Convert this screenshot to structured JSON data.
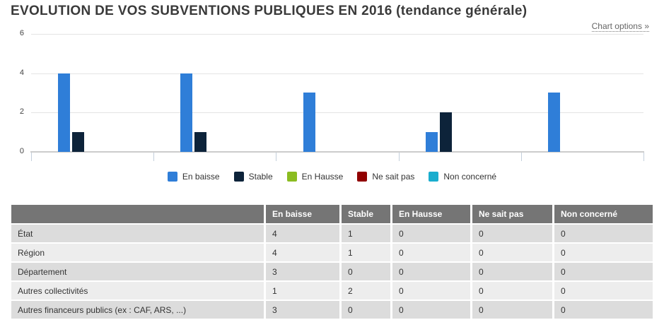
{
  "header": {
    "title": "EVOLUTION DE VOS SUBVENTIONS PUBLIQUES EN 2016 (tendance générale)",
    "chart_options_label": "Chart options »"
  },
  "chart_data": {
    "type": "bar",
    "title": "EVOLUTION DE VOS SUBVENTIONS PUBLIQUES EN 2016 (tendance générale)",
    "categories": [
      "État",
      "Région",
      "Département",
      "Autres collectivités",
      "Autres financeurs publics (ex : CAF, ARS, ...)"
    ],
    "series": [
      {
        "name": "En baisse",
        "color": "#2f7ed8",
        "values": [
          4,
          4,
          3,
          1,
          3
        ]
      },
      {
        "name": "Stable",
        "color": "#0d233a",
        "values": [
          1,
          1,
          0,
          2,
          0
        ]
      },
      {
        "name": "En Hausse",
        "color": "#8bbc21",
        "values": [
          0,
          0,
          0,
          0,
          0
        ]
      },
      {
        "name": "Ne sait pas",
        "color": "#910000",
        "values": [
          0,
          0,
          0,
          0,
          0
        ]
      },
      {
        "name": "Non concerné",
        "color": "#1aadce",
        "values": [
          0,
          0,
          0,
          0,
          0
        ]
      }
    ],
    "xlabel": "",
    "ylabel": "",
    "ylim": [
      0,
      6
    ],
    "yticks": [
      0,
      2,
      4,
      6
    ],
    "grid": true,
    "legend_position": "bottom"
  },
  "table": {
    "headers": [
      "",
      "En baisse",
      "Stable",
      "En Hausse",
      "Ne sait pas",
      "Non concerné"
    ],
    "rows": [
      {
        "label": "État",
        "values": [
          "4",
          "1",
          "0",
          "0",
          "0"
        ]
      },
      {
        "label": "Région",
        "values": [
          "4",
          "1",
          "0",
          "0",
          "0"
        ]
      },
      {
        "label": "Département",
        "values": [
          "3",
          "0",
          "0",
          "0",
          "0"
        ]
      },
      {
        "label": "Autres collectivités",
        "values": [
          "1",
          "2",
          "0",
          "0",
          "0"
        ]
      },
      {
        "label": "Autres financeurs publics (ex : CAF, ARS, ...)",
        "values": [
          "3",
          "0",
          "0",
          "0",
          "0"
        ]
      }
    ]
  },
  "colors": {
    "title_text": "#3a3a3a",
    "link_text": "#666666",
    "grid_line": "#e4e4e4",
    "axis_line": "#cccccc",
    "tick_line": "#c3cfdb",
    "table_header_bg": "#757575",
    "table_row_odd_bg": "#dcdcdc",
    "table_row_even_bg": "#ededed"
  }
}
